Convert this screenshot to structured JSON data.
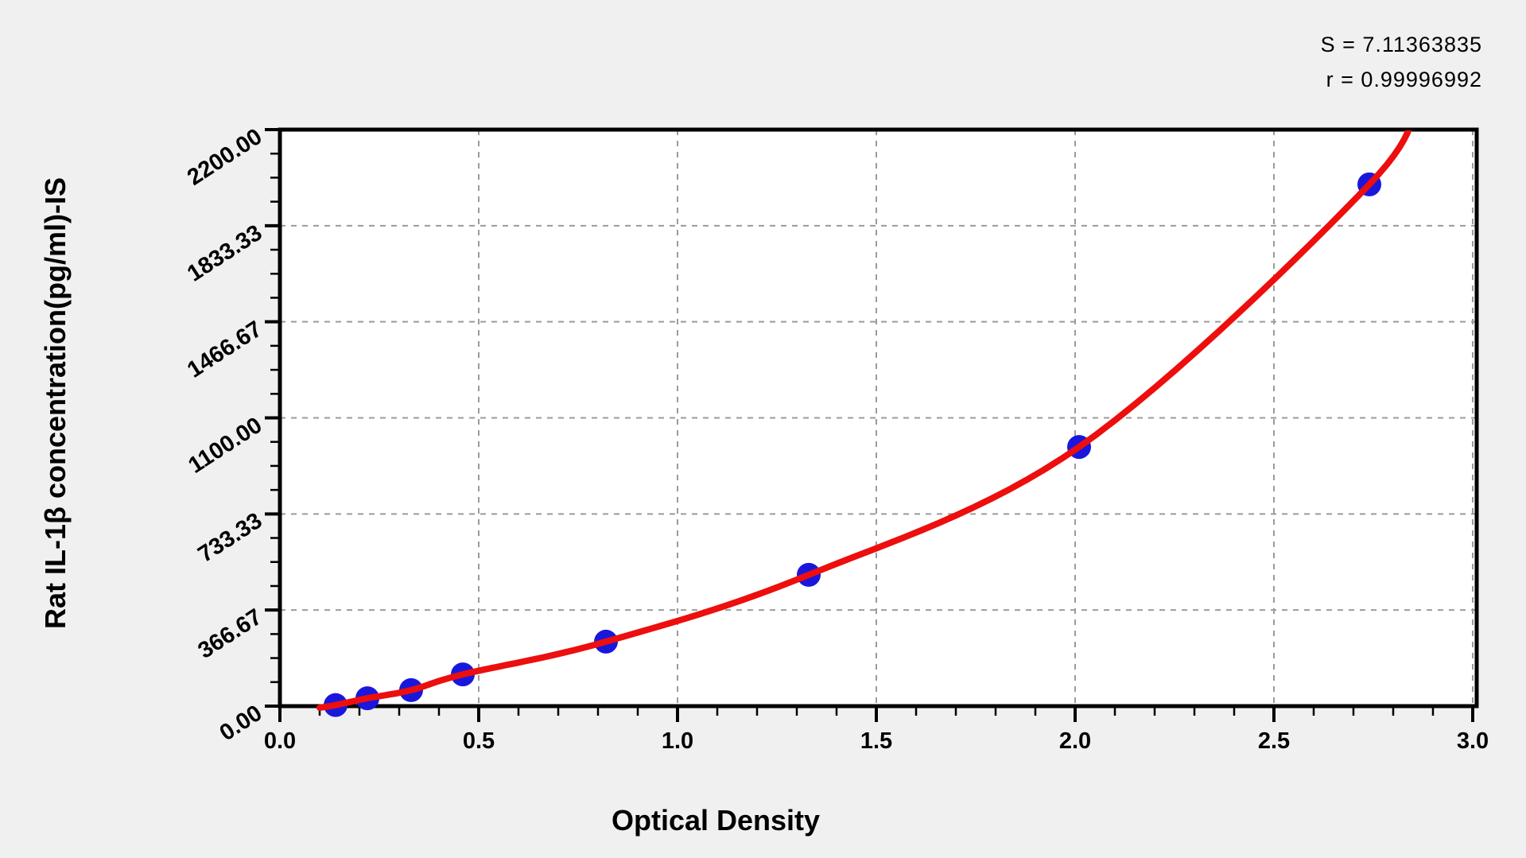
{
  "stats": {
    "s_line": "S = 7.11363835",
    "r_line": "r = 0.99996992"
  },
  "colors": {
    "background": "#f0f0f0",
    "plot_bg": "#ffffff",
    "axis": "#000000",
    "grid": "#9b9b9b",
    "curve": "#ed0e0e",
    "points": "#1a17dd"
  },
  "chart_data": {
    "type": "scatter",
    "title": "",
    "xlabel": "Optical Density",
    "ylabel": "Rat IL-1β concentration(pg/ml)-IS",
    "xlim": [
      0,
      3.0
    ],
    "ylim": [
      0,
      2200
    ],
    "x_major_ticks": [
      0,
      0.5,
      1.0,
      1.5,
      2.0,
      2.5,
      3.0
    ],
    "x_tick_labels": [
      "0.0",
      "0.5",
      "1.0",
      "1.5",
      "2.0",
      "2.5",
      "3.0"
    ],
    "x_minor_step": 0.1,
    "y_major_ticks": [
      0,
      366.67,
      733.33,
      1100,
      1466.67,
      1833.33,
      2200
    ],
    "y_tick_labels": [
      "0.00",
      "366.67",
      "733.33",
      "1100.00",
      "1466.67",
      "1833.33",
      "2200.00"
    ],
    "y_minor_divisions": 4,
    "grid": "dashed gray lines at major ticks, both axes",
    "legend": "none",
    "annotations": [
      "S = 7.11363835",
      "r = 0.99996992"
    ],
    "series": [
      {
        "name": "standard-points",
        "type": "scatter",
        "marker": "circle",
        "color": "#1a17dd",
        "points_x": [
          0.14,
          0.22,
          0.33,
          0.46,
          0.82,
          1.33,
          2.01,
          2.74
        ],
        "points_y": [
          4,
          30,
          61,
          121,
          246,
          501,
          989,
          1991
        ]
      },
      {
        "name": "fit-curve",
        "type": "line",
        "color": "#ed0e0e",
        "x": [
          0.1,
          0.14,
          0.22,
          0.33,
          0.46,
          0.82,
          1.33,
          2.01,
          2.74,
          2.86
        ],
        "y": [
          -6,
          4,
          30,
          61,
          121,
          246,
          501,
          989,
          1991,
          2340
        ]
      }
    ]
  }
}
